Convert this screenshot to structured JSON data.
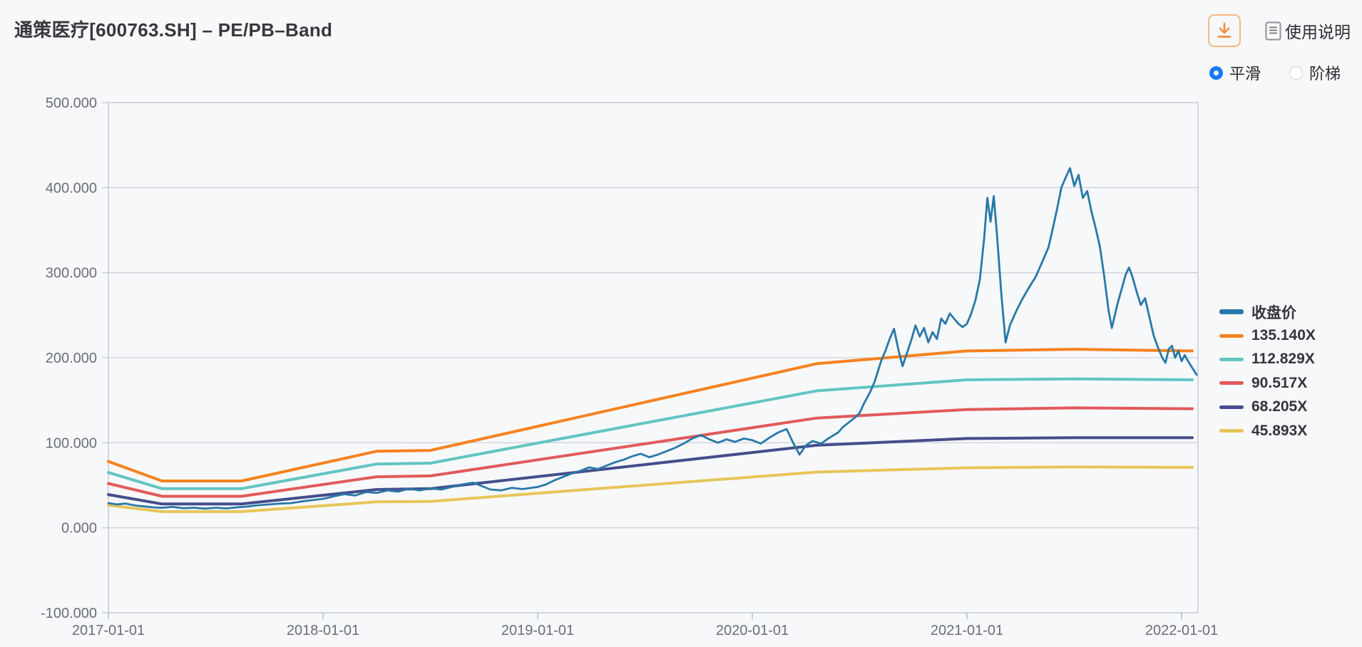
{
  "header": {
    "title": "通策医疗[600763.SH] – PE/PB–Band",
    "help_label": "使用说明"
  },
  "controls": {
    "smooth_label": "平滑",
    "step_label": "阶梯",
    "selected": "平滑"
  },
  "icons": {
    "download": "download-arrow-in-box",
    "help": "document-sheet"
  },
  "colors": {
    "background": "#f7f8fa",
    "download_button_border": "#f8b880",
    "download_icon": "#ef8e3f",
    "radio_selected": "#1677ff",
    "grid": "#cfd3d9",
    "plot_border": "#c4c9d2",
    "x_tick": "#aec4dd",
    "axis_text": "#6a6e75",
    "close_price": "#2878a8",
    "band_135": "#f6821f",
    "band_112": "#62c5c0",
    "band_90": "#e25a5a",
    "band_68": "#454e8c",
    "band_45": "#e6c65a"
  },
  "chart_data": {
    "type": "line",
    "title": "通策医疗[600763.SH] – PE/PB–Band",
    "x_unit": "years since 2017-01-01",
    "x_ticks": [
      "2017-01-01",
      "2018-01-01",
      "2019-01-01",
      "2020-01-01",
      "2021-01-01",
      "2022-01-01"
    ],
    "y_ticks": [
      500,
      400,
      300,
      200,
      100,
      0,
      -100
    ],
    "y_tick_labels": [
      "500.000",
      "400.000",
      "300.000",
      "200.000",
      "100.000",
      "0.000",
      "-100.000"
    ],
    "ylim": [
      -100,
      500
    ],
    "grid": true,
    "legend_position": "right",
    "series": [
      {
        "name": "收盘价",
        "color": "#2878a8",
        "width": 2.8,
        "x": [
          0.0,
          0.04,
          0.08,
          0.13,
          0.17,
          0.21,
          0.25,
          0.3,
          0.35,
          0.4,
          0.45,
          0.5,
          0.55,
          0.6,
          0.65,
          0.7,
          0.75,
          0.8,
          0.85,
          0.9,
          0.95,
          1.0,
          1.05,
          1.1,
          1.15,
          1.2,
          1.25,
          1.3,
          1.35,
          1.4,
          1.45,
          1.5,
          1.55,
          1.6,
          1.65,
          1.7,
          1.73,
          1.78,
          1.83,
          1.88,
          1.93,
          1.97,
          2.0,
          2.04,
          2.08,
          2.12,
          2.16,
          2.2,
          2.24,
          2.28,
          2.32,
          2.36,
          2.4,
          2.44,
          2.48,
          2.52,
          2.56,
          2.6,
          2.64,
          2.68,
          2.72,
          2.76,
          2.8,
          2.84,
          2.88,
          2.92,
          2.96,
          3.0,
          3.04,
          3.08,
          3.12,
          3.16,
          3.19,
          3.22,
          3.25,
          3.28,
          3.32,
          3.36,
          3.4,
          3.42,
          3.45,
          3.48,
          3.5,
          3.52,
          3.55,
          3.57,
          3.6,
          3.62,
          3.64,
          3.66,
          3.68,
          3.7,
          3.72,
          3.74,
          3.76,
          3.78,
          3.8,
          3.82,
          3.84,
          3.86,
          3.88,
          3.9,
          3.92,
          3.94,
          3.96,
          3.98,
          4.0,
          4.02,
          4.04,
          4.06,
          4.08,
          4.095,
          4.11,
          4.125,
          4.14,
          4.16,
          4.18,
          4.2,
          4.23,
          4.26,
          4.29,
          4.32,
          4.35,
          4.38,
          4.4,
          4.42,
          4.44,
          4.46,
          4.48,
          4.5,
          4.52,
          4.54,
          4.56,
          4.58,
          4.6,
          4.62,
          4.64,
          4.66,
          4.675,
          4.7,
          4.72,
          4.74,
          4.755,
          4.77,
          4.79,
          4.81,
          4.83,
          4.85,
          4.87,
          4.89,
          4.91,
          4.925,
          4.94,
          4.955,
          4.97,
          4.985,
          5.0,
          5.015,
          5.03,
          5.05,
          5.07
        ],
        "y": [
          29,
          27.5,
          28.5,
          26,
          25,
          24,
          23.5,
          24.5,
          23,
          23.5,
          22.5,
          23.5,
          22.8,
          24,
          25,
          26.5,
          27.5,
          28.5,
          29,
          31,
          32.5,
          34,
          37,
          39.5,
          38,
          42,
          41,
          44,
          42.5,
          46,
          44,
          46.5,
          45,
          48,
          51,
          53,
          50,
          45,
          44,
          47,
          45.5,
          47,
          48,
          51,
          56,
          60,
          64,
          67,
          71,
          69,
          73,
          77,
          80,
          84,
          87,
          83,
          86,
          90,
          94,
          99,
          105,
          109,
          104,
          100,
          104,
          101,
          105,
          103,
          99,
          106,
          112,
          116,
          100,
          86,
          97,
          102,
          99,
          106,
          112,
          118,
          124,
          130,
          135,
          146,
          160,
          172,
          196,
          208,
          222,
          234,
          210,
          190,
          205,
          220,
          238,
          225,
          235,
          218,
          230,
          222,
          246,
          240,
          252,
          246,
          240,
          236,
          240,
          252,
          268,
          292,
          340,
          388,
          360,
          390,
          345,
          275,
          218,
          238,
          255,
          270,
          283,
          295,
          312,
          330,
          352,
          375,
          400,
          412,
          423,
          402,
          415,
          388,
          396,
          372,
          352,
          330,
          295,
          255,
          235,
          262,
          280,
          298,
          306,
          296,
          278,
          262,
          270,
          248,
          226,
          212,
          200,
          194,
          210,
          214,
          200,
          208,
          196,
          203,
          196,
          188,
          180
        ]
      },
      {
        "name": "135.140X",
        "color": "#f6821f",
        "width": 4,
        "x": [
          0,
          0.25,
          0.62,
          1.25,
          1.5,
          3.3,
          4.0,
          4.5,
          5.05
        ],
        "y": [
          78,
          55,
          55,
          90,
          91,
          193,
          208,
          210,
          208
        ]
      },
      {
        "name": "112.829X",
        "color": "#62c5c0",
        "width": 4,
        "x": [
          0,
          0.25,
          0.62,
          1.25,
          1.5,
          3.3,
          4.0,
          4.5,
          5.05
        ],
        "y": [
          65,
          46,
          46,
          75,
          76,
          161,
          174,
          175,
          174
        ]
      },
      {
        "name": "90.517X",
        "color": "#e25a5a",
        "width": 4,
        "x": [
          0,
          0.25,
          0.62,
          1.25,
          1.5,
          3.3,
          4.0,
          4.5,
          5.05
        ],
        "y": [
          52,
          37,
          37,
          60,
          61,
          129,
          139,
          141,
          140
        ]
      },
      {
        "name": "68.205X",
        "color": "#454e8c",
        "width": 4,
        "x": [
          0,
          0.25,
          0.62,
          1.25,
          1.5,
          3.3,
          4.0,
          4.5,
          5.05
        ],
        "y": [
          39,
          28,
          28,
          45,
          46,
          97,
          105,
          106,
          106
        ]
      },
      {
        "name": "45.893X",
        "color": "#e6c65a",
        "width": 4,
        "x": [
          0,
          0.25,
          0.62,
          1.25,
          1.5,
          3.3,
          4.0,
          4.5,
          5.05
        ],
        "y": [
          26.5,
          19,
          19,
          30.5,
          31,
          65.5,
          70.5,
          71.5,
          71
        ]
      }
    ]
  }
}
